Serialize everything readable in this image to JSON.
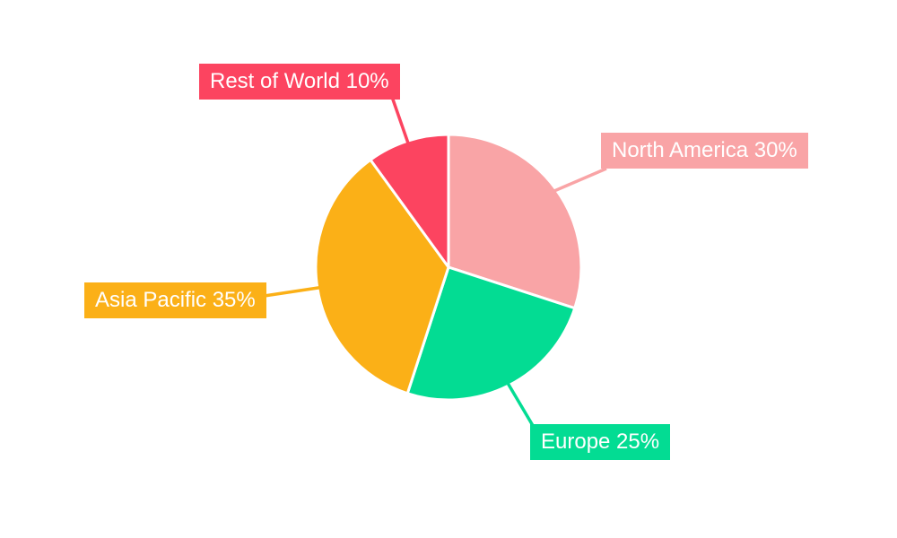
{
  "chart_data": {
    "type": "pie",
    "title": "",
    "categories": [
      "North America",
      "Europe",
      "Asia Pacific",
      "Rest of World"
    ],
    "values": [
      30,
      25,
      35,
      10
    ],
    "unit": "%",
    "segments": [
      {
        "label": "North America",
        "value": 30,
        "display": "North America 30%",
        "color": "#F9A4A6"
      },
      {
        "label": "Europe",
        "value": 25,
        "display": "Europe 25%",
        "color": "#03DC93"
      },
      {
        "label": "Asia Pacific",
        "value": 35,
        "display": "Asia Pacific 35%",
        "color": "#FBB017"
      },
      {
        "label": "Rest of World",
        "value": 10,
        "display": "Rest of World 10%",
        "color": "#FC4460"
      }
    ],
    "start_angle_deg": 0,
    "direction": "clockwise",
    "labels_style": "external-boxes-with-leader-lines",
    "label_text_color": "#FFFFFF",
    "slice_border_color": "#FFFFFF",
    "slice_border_width": 3,
    "leader_line_width": 3.5,
    "background": "#FFFFFF",
    "legend": "none"
  }
}
